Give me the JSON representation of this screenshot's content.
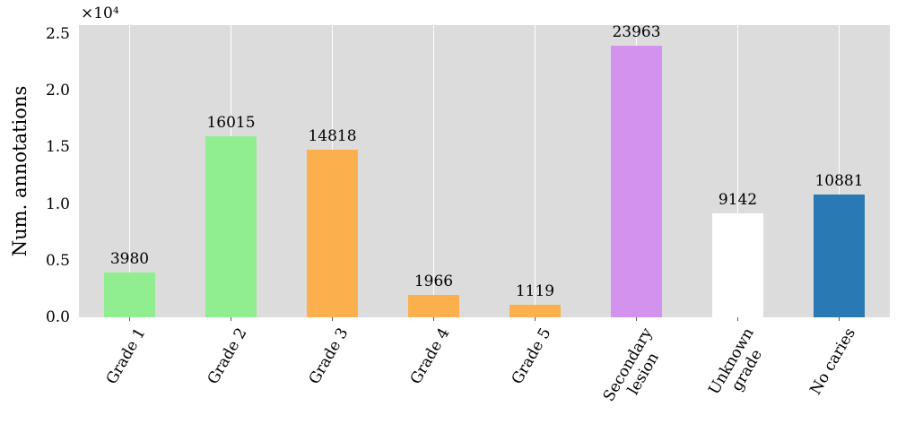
{
  "chart_data": {
    "type": "bar",
    "categories": [
      "Grade 1",
      "Grade 2",
      "Grade 3",
      "Grade 4",
      "Grade 5",
      "Secondary\nlesion",
      "Unknown\ngrade",
      "No caries"
    ],
    "values": [
      3980,
      16015,
      14818,
      1966,
      1119,
      23963,
      9142,
      10881
    ],
    "bar_colors": [
      "#90EE90",
      "#90EE90",
      "#FBB04D",
      "#FBB04D",
      "#FBB04D",
      "#D392EE",
      "#FFFFFF",
      "#2979B5"
    ],
    "title": "",
    "xlabel": "",
    "ylabel": "Num. annotations",
    "offset_text": "×10⁴",
    "ylim": [
      0,
      25800
    ],
    "yticks": [
      0,
      5000,
      10000,
      15000,
      20000,
      25000
    ],
    "ytick_labels": [
      "0.0",
      "0.5",
      "1.0",
      "1.5",
      "2.0",
      "2.5"
    ],
    "grid": "vertical-white",
    "plot_bg": "#DCDCDC",
    "value_labels": true,
    "legend": "none"
  }
}
